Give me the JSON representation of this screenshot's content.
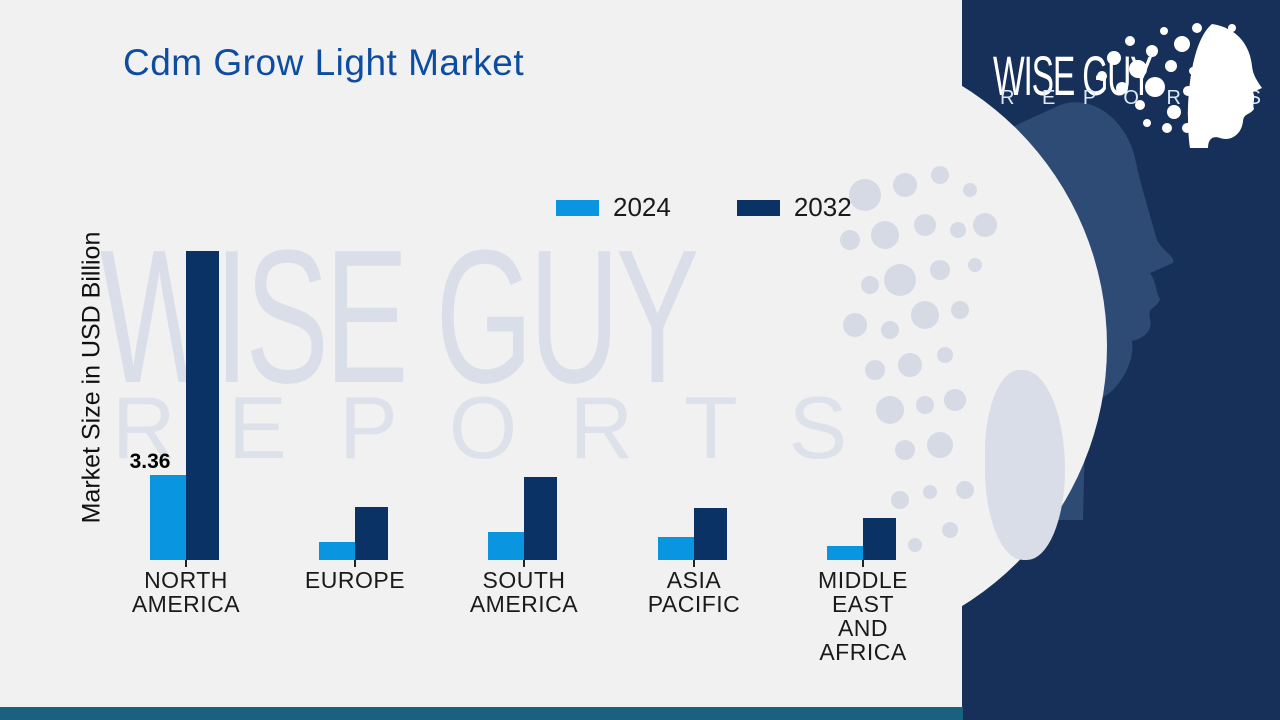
{
  "title": "Cdm Grow Light Market",
  "brand_logo": {
    "name": "WISE GUY",
    "sub": "R E P O R T S"
  },
  "watermark": {
    "name": "WISE GUY",
    "sub": "R E P O R T S"
  },
  "colors": {
    "background": "#f1f1f2",
    "title": "#0d4da1",
    "bar_2024": "#0995e0",
    "bar_2032": "#0b3264",
    "right_panel": "#16305a",
    "footer_bar": "#1a6180",
    "watermark": "#d9dee8"
  },
  "chart_data": {
    "type": "bar",
    "title": "Cdm Grow Light Market",
    "xlabel": "",
    "ylabel": "Market Size in USD Billion",
    "unit": "USD Billion",
    "categories": [
      "NORTH\nAMERICA",
      "EUROPE",
      "SOUTH\nAMERICA",
      "ASIA\nPACIFIC",
      "MIDDLE\nEAST\nAND\nAFRICA"
    ],
    "series": [
      {
        "name": "2024",
        "color": "#0995e0",
        "values": [
          3.36,
          0.7,
          1.1,
          0.9,
          0.55
        ]
      },
      {
        "name": "2032",
        "color": "#0b3264",
        "values": [
          12.2,
          2.1,
          3.3,
          2.05,
          1.65
        ]
      }
    ],
    "data_label": {
      "series": "2024",
      "category": "NORTH AMERICA",
      "text": "3.36"
    },
    "legend_position": "top-center",
    "grid": false,
    "ylim": [
      0,
      12.6
    ]
  }
}
